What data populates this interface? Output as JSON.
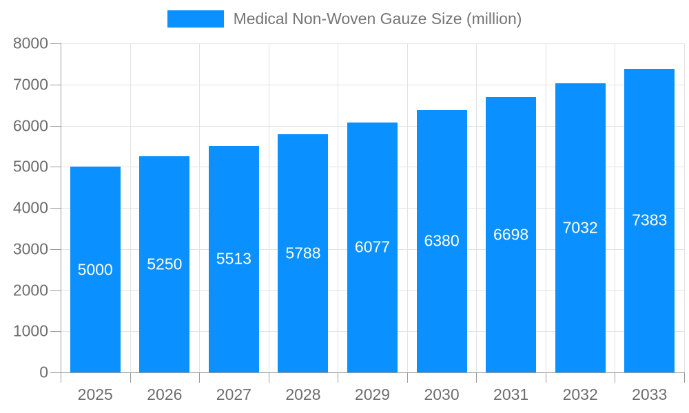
{
  "legend": {
    "label": "Medical Non-Woven Gauze Size (million)",
    "swatch_color": "#0a90ff"
  },
  "chart_data": {
    "type": "bar",
    "categories": [
      "2025",
      "2026",
      "2027",
      "2028",
      "2029",
      "2030",
      "2031",
      "2032",
      "2033"
    ],
    "values": [
      5000,
      5250,
      5513,
      5788,
      6077,
      6380,
      6698,
      7032,
      7383
    ],
    "series": [
      {
        "name": "Medical Non-Woven Gauze Size (million)",
        "values": [
          5000,
          5250,
          5513,
          5788,
          6077,
          6380,
          6698,
          7032,
          7383
        ]
      }
    ],
    "title": "",
    "xlabel": "",
    "ylabel": "",
    "ylim": [
      0,
      8000
    ],
    "ytick_step": 1000,
    "ytick_labels": [
      "0",
      "1000",
      "2000",
      "3000",
      "4000",
      "5000",
      "6000",
      "7000",
      "8000"
    ],
    "grid": true,
    "legend_position": "top",
    "bar_labels_visible": true
  },
  "colors": {
    "bar": "#0a90ff",
    "grid": "#e2e2e2",
    "axis": "#9a9a9a",
    "tick_text": "#6d6d6d",
    "legend_text": "#757575",
    "bar_label_text": "#ffffff",
    "background": "#ffffff"
  }
}
